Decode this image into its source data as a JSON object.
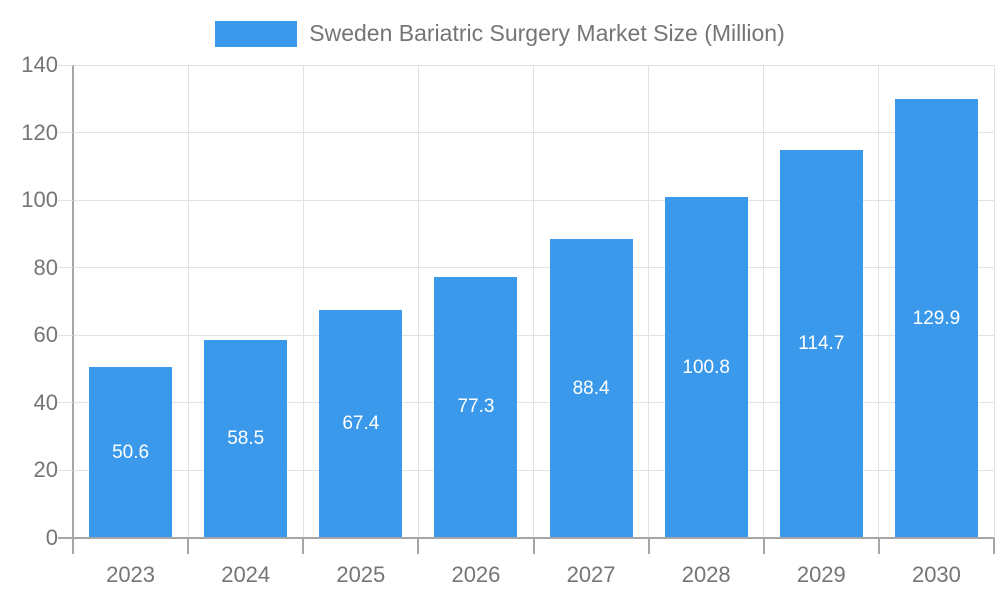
{
  "legend": {
    "label": "Sweden Bariatric Surgery Market Size (Million)"
  },
  "chart_data": {
    "type": "bar",
    "title": "Sweden Bariatric Surgery Market Size (Million)",
    "categories": [
      "2023",
      "2024",
      "2025",
      "2026",
      "2027",
      "2028",
      "2029",
      "2030"
    ],
    "values": [
      50.6,
      58.5,
      67.4,
      77.3,
      88.4,
      100.8,
      114.7,
      129.9
    ],
    "value_labels": [
      "50.6",
      "58.5",
      "67.4",
      "77.3",
      "88.4",
      "100.8",
      "114.7",
      "129.9"
    ],
    "xlabel": "",
    "ylabel": "",
    "ylim": [
      0,
      140
    ],
    "yticks": [
      0,
      20,
      40,
      60,
      80,
      100,
      120,
      140
    ],
    "grid": true,
    "legend_position": "top-center",
    "colors": {
      "bar": "#3b99ec",
      "grid": "#e2e2e2",
      "axis": "#a6a6a6",
      "text": "#757575",
      "value_label": "#ffffff",
      "background": "#ffffff"
    }
  }
}
